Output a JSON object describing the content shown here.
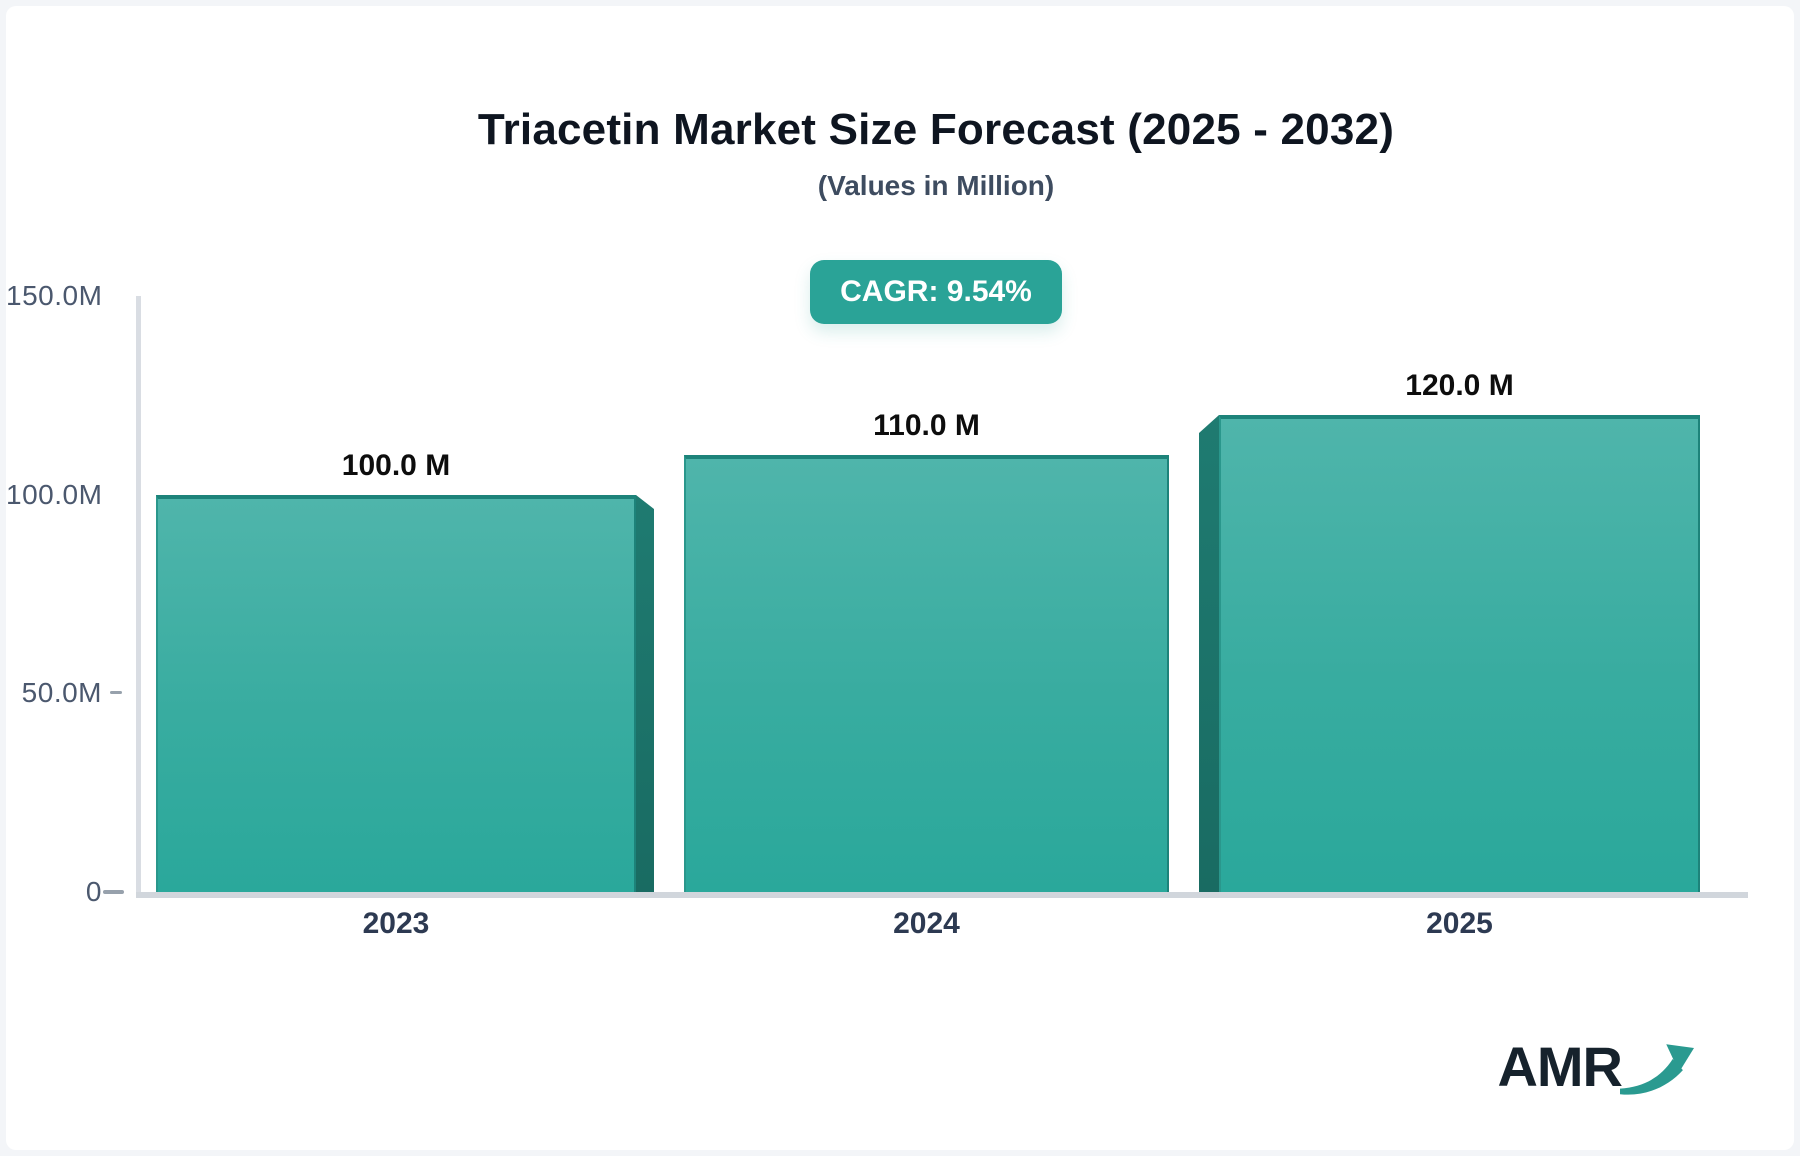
{
  "title": "Triacetin Market Size Forecast (2025 - 2032)",
  "subtitle": "(Values in Million)",
  "cagr_badge": "CAGR: 9.54%",
  "logo": {
    "text": "AMR"
  },
  "colors": {
    "teal_accent": "#2aa397",
    "bar_gradient_top": "#4fb5ab",
    "bar_gradient_bottom": "#2aa89b",
    "bar_edge": "#1d837a",
    "bar_side_face": "#1f7b71",
    "axis_gray": "#d9dde3",
    "y_label": "#4b586e",
    "x_label": "#2d3a52"
  },
  "chart_data": {
    "type": "bar",
    "title": "Triacetin Market Size Forecast (2025 - 2032)",
    "subtitle": "(Values in Million)",
    "cagr": "9.54%",
    "unit": "Million",
    "categories": [
      "2023",
      "2024",
      "2025"
    ],
    "values": [
      100,
      110,
      120
    ],
    "value_labels": [
      "100.0 M",
      "110.0 M",
      "120.0 M"
    ],
    "xlabel": "",
    "ylabel": "",
    "ylim": [
      0,
      150
    ],
    "yticks": [
      {
        "value": 150,
        "label": "150.0M"
      },
      {
        "value": 100,
        "label": "100.0M"
      },
      {
        "value": 50,
        "label": "50.0M"
      },
      {
        "value": 0,
        "label": "0"
      }
    ],
    "grid": false,
    "legend": false
  }
}
